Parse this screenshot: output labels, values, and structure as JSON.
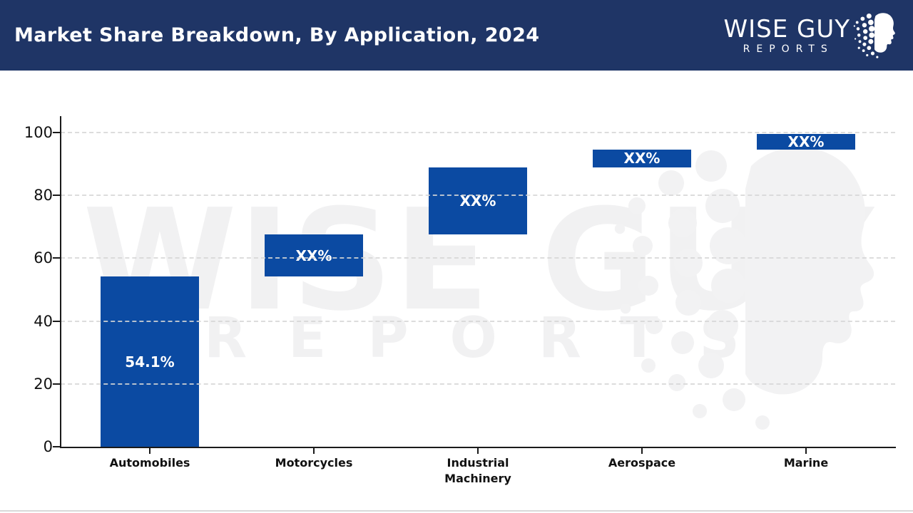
{
  "header": {
    "title": "Market Share Breakdown, By Application, 2024",
    "logo": {
      "name": "WISE GUY",
      "tagline": "REPORTS"
    }
  },
  "watermark": {
    "line1": "WISE GUY",
    "line2": "REPORTS"
  },
  "colors": {
    "header_bg": "#1f3566",
    "bar": "#0b4aa2",
    "bar_label": "#ffffff",
    "grid": "#d9d9d9",
    "axis": "#1a1a1a",
    "watermark": "#f1f1f2"
  },
  "chart_data": {
    "type": "bar",
    "subtype": "waterfall (stacked percentage breakdown)",
    "title": "Market Share Breakdown, By Application, 2024",
    "xlabel": "",
    "ylabel": "",
    "ylim": [
      0,
      105
    ],
    "yticks": [
      0,
      20,
      40,
      60,
      80,
      100
    ],
    "grid": "horizontal-dashed",
    "legend": "none",
    "categories": [
      "Automobiles",
      "Motorcycles",
      "Industrial\nMachinery",
      "Aerospace",
      "Marine"
    ],
    "segments": [
      {
        "category": "Automobiles",
        "start": 0,
        "end": 54.1,
        "value": 54.1,
        "label": "54.1%"
      },
      {
        "category": "Motorcycles",
        "start": 54.1,
        "end": 67.6,
        "value": 13.5,
        "label": "XX%"
      },
      {
        "category": "Industrial Machinery",
        "start": 67.6,
        "end": 88.9,
        "value": 21.3,
        "label": "XX%"
      },
      {
        "category": "Aerospace",
        "start": 88.9,
        "end": 94.6,
        "value": 5.7,
        "label": "XX%"
      },
      {
        "category": "Marine",
        "start": 94.6,
        "end": 99.5,
        "value": 4.9,
        "label": "XX%"
      }
    ]
  }
}
